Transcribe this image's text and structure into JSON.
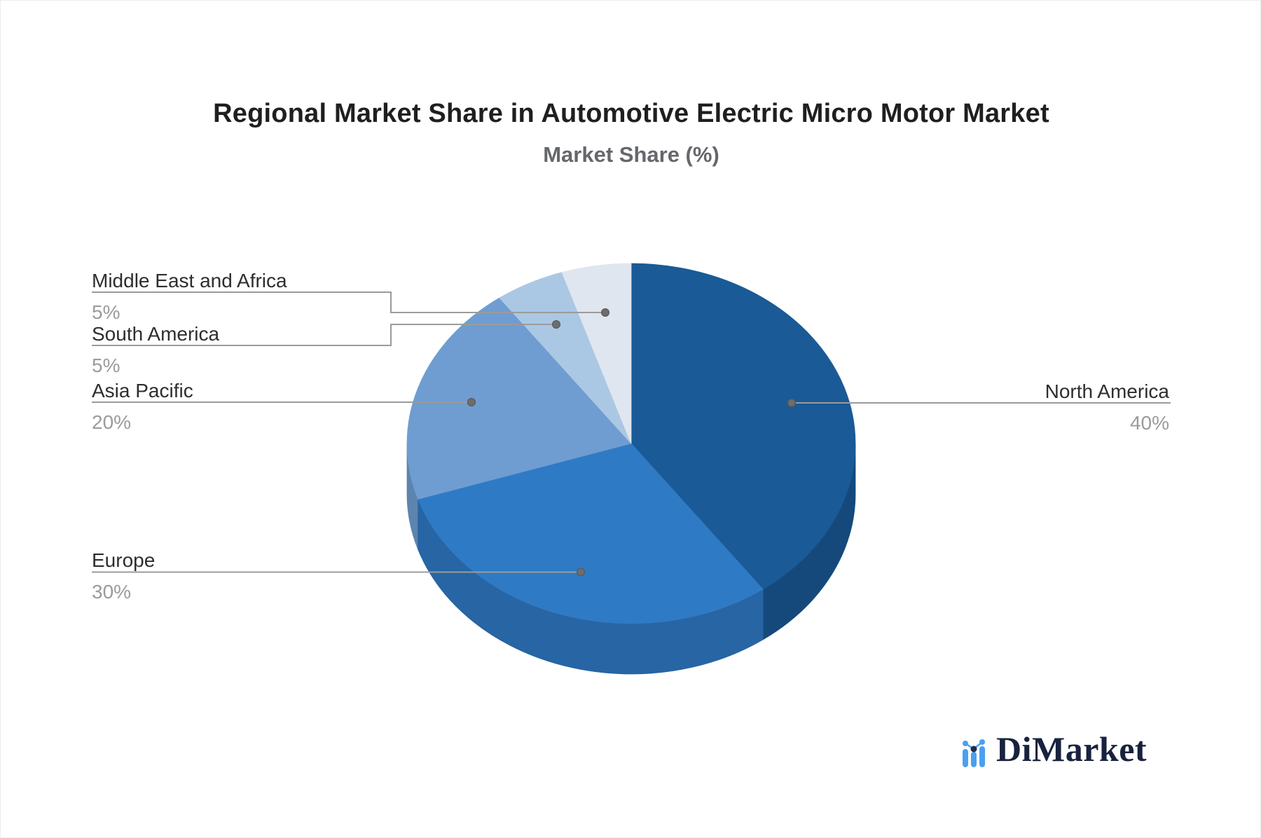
{
  "header": {
    "title": "Regional Market Share in Automotive Electric Micro Motor Market",
    "subtitle": "Market Share (%)"
  },
  "chart_data": {
    "type": "pie",
    "title": "Regional Market Share in Automotive Electric Micro Motor Market",
    "subtitle": "Market Share (%)",
    "unit": "%",
    "is_3d": true,
    "start_angle": "top",
    "direction": "clockwise",
    "legend_position": "connector-labels",
    "categories": [
      "North America",
      "Europe",
      "Asia Pacific",
      "South America",
      "Middle East and Africa"
    ],
    "values": [
      40,
      30,
      20,
      5,
      5
    ],
    "slices": [
      {
        "name": "North America",
        "value": 40,
        "display": "40%",
        "color": "#1a5a96",
        "side_color": "#15497c"
      },
      {
        "name": "Europe",
        "value": 30,
        "display": "30%",
        "color": "#2f7ac4",
        "side_color": "#2765a4"
      },
      {
        "name": "Asia Pacific",
        "value": 20,
        "display": "20%",
        "color": "#6f9dd1",
        "side_color": "#5d84af"
      },
      {
        "name": "South America",
        "value": 5,
        "display": "5%",
        "color": "#aac8e4"
      },
      {
        "name": "Middle East and Africa",
        "value": 5,
        "display": "5%",
        "color": "#dfe6f0"
      }
    ],
    "connector_color": "#9b9b9b",
    "label_name_color": "#2e2e2e",
    "label_value_color": "#9b9b9b"
  },
  "branding": {
    "logo_text": "DiMarket",
    "logo_icon": "bar-chart-with-trend-line",
    "logo_text_color": "#18223e",
    "logo_accent_color": "#4aa0f0"
  }
}
